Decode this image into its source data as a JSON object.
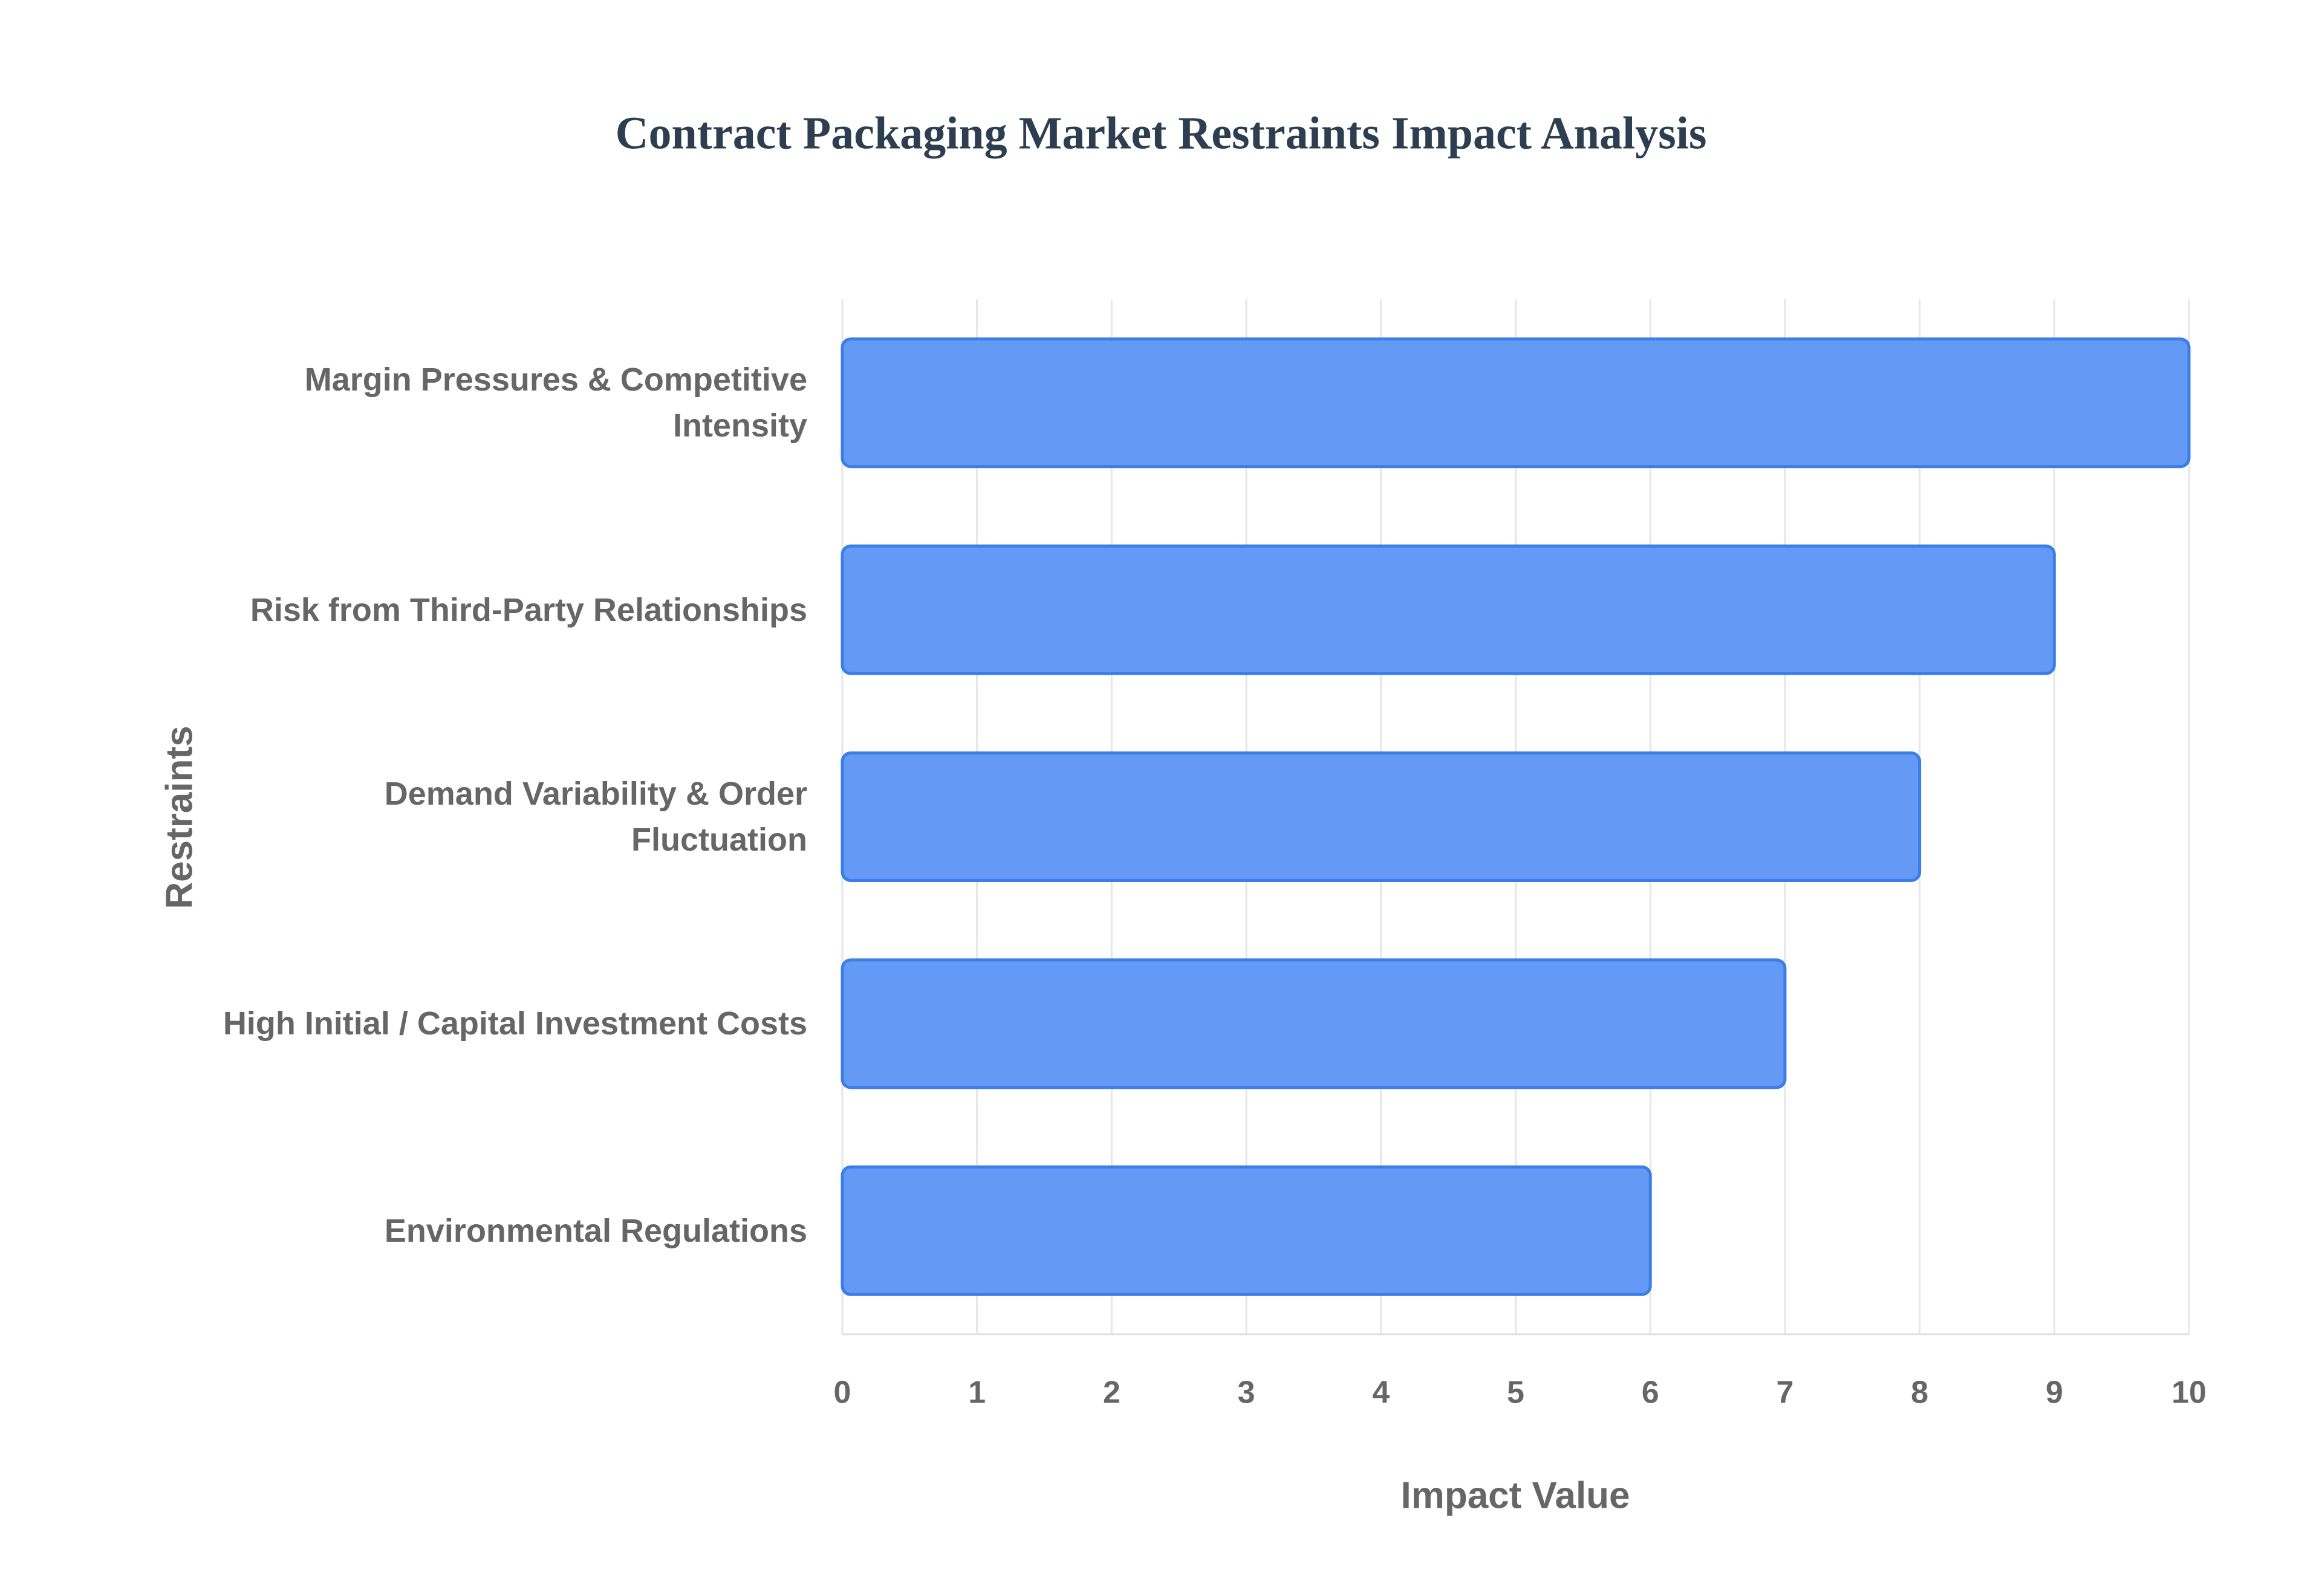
{
  "chart_data": {
    "type": "bar",
    "orientation": "horizontal",
    "title": "Contract Packaging Market Restraints Impact Analysis",
    "x_label": "Impact Value",
    "y_label": "Restraints",
    "categories": [
      "Margin Pressures & Competitive Intensity",
      "Risk from Third-Party Relationships",
      "Demand Variability & Order Fluctuation",
      "High Initial / Capital Investment Costs",
      "Environmental Regulations"
    ],
    "values": [
      10,
      9,
      8,
      7,
      6
    ],
    "color": "#6499f5",
    "xlim": [
      0,
      10
    ],
    "xticks": [
      0,
      1,
      2,
      3,
      4,
      5,
      6,
      7,
      8,
      9,
      10
    ],
    "grid": true
  }
}
